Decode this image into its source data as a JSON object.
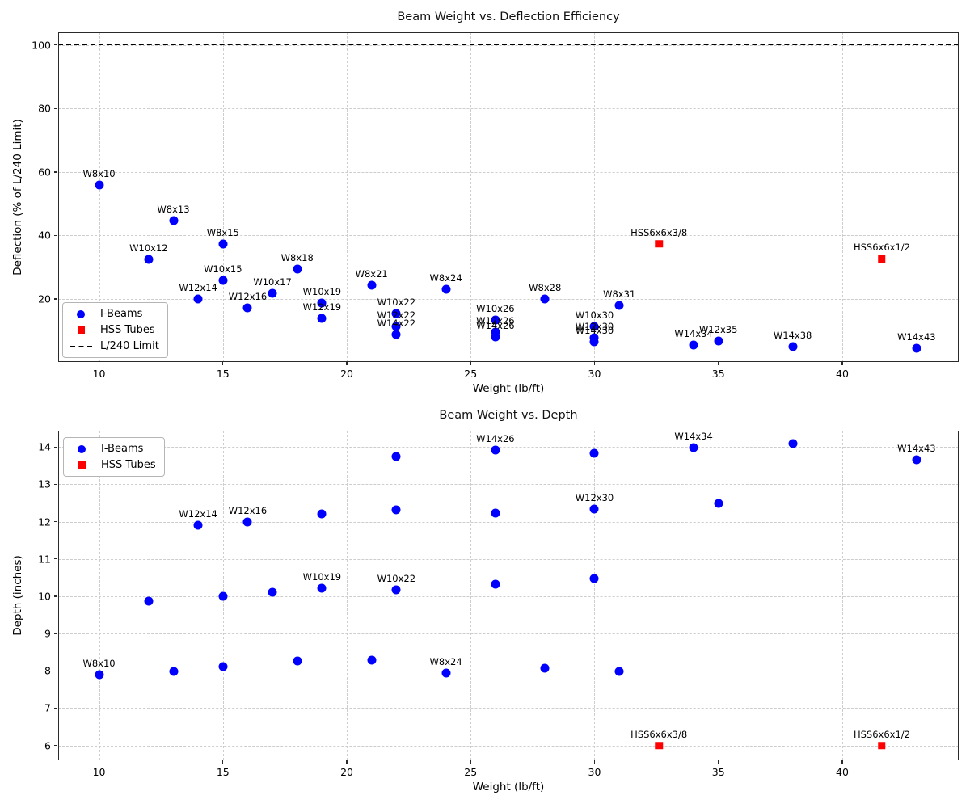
{
  "figure_background": "#ffffff",
  "colors": {
    "ibeam": "#0000ff",
    "hss": "#ff0000",
    "limit_line": "#000000",
    "grid": "#cdcdcd",
    "spine": "#2a2a2a"
  },
  "chart_data": [
    {
      "type": "scatter",
      "title": "Beam Weight vs. Deflection Efficiency",
      "xlabel": "Weight (lb/ft)",
      "ylabel": "Deflection (% of L/240 Limit)",
      "xlim": [
        8.35,
        44.7
      ],
      "ylim": [
        0.15,
        104
      ],
      "xticks": [
        10,
        15,
        20,
        25,
        30,
        35,
        40
      ],
      "yticks": [
        20,
        40,
        60,
        80,
        100
      ],
      "grid": true,
      "limit_line": {
        "value": 100,
        "label": "L/240 Limit",
        "color": "#000000",
        "style": "dashed"
      },
      "legend": {
        "position": "lower-left",
        "items": [
          {
            "marker": "circle",
            "color": "#0000ff",
            "label": "I-Beams"
          },
          {
            "marker": "square",
            "color": "#ff0000",
            "label": "HSS Tubes"
          },
          {
            "marker": "dashed-line",
            "color": "#000000",
            "label": "L/240 Limit"
          }
        ]
      },
      "series": [
        {
          "name": "I-Beams",
          "marker": "circle",
          "color": "#0000ff",
          "points": [
            {
              "label": "W8x10",
              "x": 10,
              "y": 56.0,
              "annotated": true
            },
            {
              "label": "W10x12",
              "x": 12,
              "y": 32.6,
              "annotated": true
            },
            {
              "label": "W8x13",
              "x": 13,
              "y": 44.6,
              "annotated": true
            },
            {
              "label": "W12x14",
              "x": 14,
              "y": 20.0,
              "annotated": true
            },
            {
              "label": "W8x15",
              "x": 15,
              "y": 37.4,
              "annotated": true
            },
            {
              "label": "W10x15",
              "x": 15,
              "y": 25.8,
              "annotated": true
            },
            {
              "label": "W12x16",
              "x": 16,
              "y": 17.2,
              "annotated": true
            },
            {
              "label": "W10x17",
              "x": 17,
              "y": 21.9,
              "annotated": true
            },
            {
              "label": "W8x18",
              "x": 18,
              "y": 29.5,
              "annotated": true
            },
            {
              "label": "W10x19",
              "x": 19,
              "y": 18.8,
              "annotated": true
            },
            {
              "label": "W12x19",
              "x": 19,
              "y": 13.9,
              "annotated": true
            },
            {
              "label": "W8x21",
              "x": 21,
              "y": 24.4,
              "annotated": true
            },
            {
              "label": "W10x22",
              "x": 22,
              "y": 15.4,
              "annotated": true
            },
            {
              "label": "W12x22",
              "x": 22,
              "y": 11.3,
              "annotated": true
            },
            {
              "label": "W14x22",
              "x": 22,
              "y": 8.7,
              "annotated": true
            },
            {
              "label": "W8x24",
              "x": 24,
              "y": 23.0,
              "annotated": true
            },
            {
              "label": "W10x26",
              "x": 26,
              "y": 13.3,
              "annotated": true
            },
            {
              "label": "W12x26",
              "x": 26,
              "y": 9.6,
              "annotated": true
            },
            {
              "label": "W14x26",
              "x": 26,
              "y": 8.0,
              "annotated": true
            },
            {
              "label": "W8x28",
              "x": 28,
              "y": 20.0,
              "annotated": true
            },
            {
              "label": "W10x30",
              "x": 30,
              "y": 11.4,
              "annotated": true
            },
            {
              "label": "W12x30",
              "x": 30,
              "y": 7.8,
              "annotated": true
            },
            {
              "label": "W14x30",
              "x": 30,
              "y": 6.5,
              "annotated": true
            },
            {
              "label": "W8x31",
              "x": 31,
              "y": 17.9,
              "annotated": true
            },
            {
              "label": "W14x34",
              "x": 34,
              "y": 5.6,
              "annotated": true
            },
            {
              "label": "W12x35",
              "x": 35,
              "y": 6.7,
              "annotated": true
            },
            {
              "label": "W14x38",
              "x": 38,
              "y": 4.9,
              "annotated": true
            },
            {
              "label": "W14x43",
              "x": 43,
              "y": 4.4,
              "annotated": true
            }
          ]
        },
        {
          "name": "HSS Tubes",
          "marker": "square",
          "color": "#ff0000",
          "points": [
            {
              "label": "HSS6x6x3/8",
              "x": 32.6,
              "y": 37.4,
              "annotated": true
            },
            {
              "label": "HSS6x6x1/2",
              "x": 41.6,
              "y": 32.7,
              "annotated": true
            }
          ]
        }
      ]
    },
    {
      "type": "scatter",
      "title": "Beam Weight vs. Depth",
      "xlabel": "Weight (lb/ft)",
      "ylabel": "Depth (inches)",
      "xlim": [
        8.35,
        44.7
      ],
      "ylim": [
        5.6,
        14.44
      ],
      "xticks": [
        10,
        15,
        20,
        25,
        30,
        35,
        40
      ],
      "yticks": [
        6,
        7,
        8,
        9,
        10,
        11,
        12,
        13,
        14
      ],
      "grid": true,
      "limit_line": null,
      "legend": {
        "position": "upper-left",
        "items": [
          {
            "marker": "circle",
            "color": "#0000ff",
            "label": "I-Beams"
          },
          {
            "marker": "square",
            "color": "#ff0000",
            "label": "HSS Tubes"
          }
        ]
      },
      "series": [
        {
          "name": "I-Beams",
          "marker": "circle",
          "color": "#0000ff",
          "points": [
            {
              "label": "W8x10",
              "x": 10,
              "y": 7.89,
              "annotated": true
            },
            {
              "label": "W10x12",
              "x": 12,
              "y": 9.87,
              "annotated": false
            },
            {
              "label": "W8x13",
              "x": 13,
              "y": 7.99,
              "annotated": false
            },
            {
              "label": "W12x14",
              "x": 14,
              "y": 11.91,
              "annotated": true
            },
            {
              "label": "W8x15",
              "x": 15,
              "y": 8.11,
              "annotated": false
            },
            {
              "label": "W10x15",
              "x": 15,
              "y": 10.0,
              "annotated": false
            },
            {
              "label": "W12x16",
              "x": 16,
              "y": 11.99,
              "annotated": true
            },
            {
              "label": "W10x17",
              "x": 17,
              "y": 10.11,
              "annotated": false
            },
            {
              "label": "W8x18",
              "x": 18,
              "y": 8.26,
              "annotated": false
            },
            {
              "label": "W10x19",
              "x": 19,
              "y": 10.22,
              "annotated": true
            },
            {
              "label": "W12x19",
              "x": 19,
              "y": 12.21,
              "annotated": false
            },
            {
              "label": "W8x21",
              "x": 21,
              "y": 8.28,
              "annotated": false
            },
            {
              "label": "W10x22",
              "x": 22,
              "y": 10.17,
              "annotated": true
            },
            {
              "label": "W12x22",
              "x": 22,
              "y": 12.31,
              "annotated": false
            },
            {
              "label": "W14x22",
              "x": 22,
              "y": 13.74,
              "annotated": false
            },
            {
              "label": "W8x24",
              "x": 24,
              "y": 7.93,
              "annotated": true
            },
            {
              "label": "W10x26",
              "x": 26,
              "y": 10.33,
              "annotated": false
            },
            {
              "label": "W12x26",
              "x": 26,
              "y": 12.22,
              "annotated": false
            },
            {
              "label": "W14x26",
              "x": 26,
              "y": 13.91,
              "annotated": true
            },
            {
              "label": "W8x28",
              "x": 28,
              "y": 8.06,
              "annotated": false
            },
            {
              "label": "W10x30",
              "x": 30,
              "y": 10.47,
              "annotated": false
            },
            {
              "label": "W12x30",
              "x": 30,
              "y": 12.34,
              "annotated": true
            },
            {
              "label": "W14x30",
              "x": 30,
              "y": 13.84,
              "annotated": false
            },
            {
              "label": "W8x31",
              "x": 31,
              "y": 7.99,
              "annotated": false
            },
            {
              "label": "W14x34",
              "x": 34,
              "y": 13.98,
              "annotated": true
            },
            {
              "label": "W12x35",
              "x": 35,
              "y": 12.5,
              "annotated": false
            },
            {
              "label": "W14x38",
              "x": 38,
              "y": 14.1,
              "annotated": false
            },
            {
              "label": "W14x43",
              "x": 43,
              "y": 13.66,
              "annotated": true
            }
          ]
        },
        {
          "name": "HSS Tubes",
          "marker": "square",
          "color": "#ff0000",
          "points": [
            {
              "label": "HSS6x6x3/8",
              "x": 32.6,
              "y": 6.0,
              "annotated": true
            },
            {
              "label": "HSS6x6x1/2",
              "x": 41.6,
              "y": 6.0,
              "annotated": true
            }
          ]
        }
      ]
    }
  ]
}
